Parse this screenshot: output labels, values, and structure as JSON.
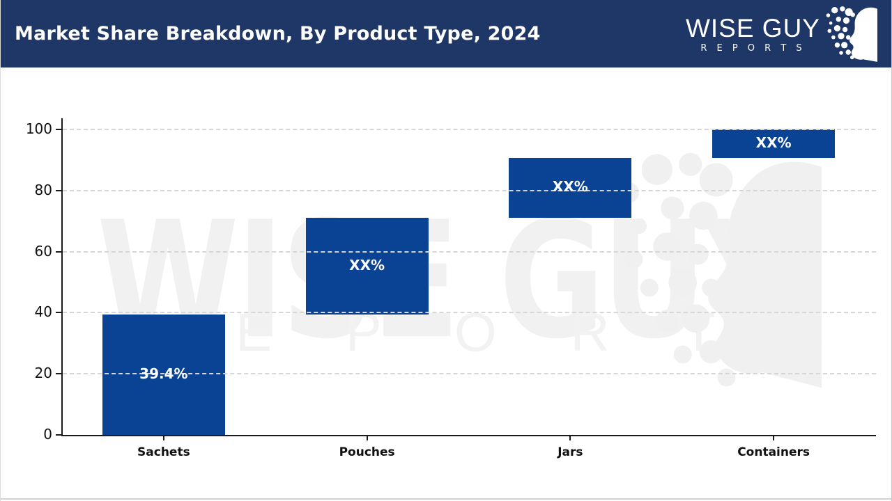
{
  "header": {
    "title": "Market Share Breakdown, By Product Type, 2024",
    "background": "#1f3766",
    "logo": {
      "line1": "WISE GUY",
      "line2": "R E P O R T S",
      "head_icon": "dotted-face-profile"
    }
  },
  "watermark": {
    "line1": "WISE GUY",
    "line2": "R E P O R T S",
    "head_icon": "dotted-face-profile"
  },
  "chart_data": {
    "type": "bar",
    "subtype": "waterfall",
    "title": "Market Share Breakdown, By Product Type, 2024",
    "categories": [
      "Sachets",
      "Pouches",
      "Jars",
      "Containers"
    ],
    "segments": [
      {
        "category": "Sachets",
        "start": 0,
        "end": 39.4,
        "label": "39.4%"
      },
      {
        "category": "Pouches",
        "start": 39.4,
        "end": 71.0,
        "label": "XX%"
      },
      {
        "category": "Jars",
        "start": 71.0,
        "end": 90.6,
        "label": "XX%"
      },
      {
        "category": "Containers",
        "start": 90.6,
        "end": 100,
        "label": "XX%"
      }
    ],
    "xlabel": "",
    "ylabel": "",
    "yticks": [
      0,
      20,
      40,
      60,
      80,
      100
    ],
    "ylim": [
      0,
      103.6
    ],
    "grid": "horizontal-dashed",
    "grid_above_bars": true,
    "legend": "none",
    "bar_color": "#0a4294",
    "bar_label_color": "#ffffff",
    "axis_color": "#1a1a1a",
    "gridline_color": "#d6d6d6"
  }
}
